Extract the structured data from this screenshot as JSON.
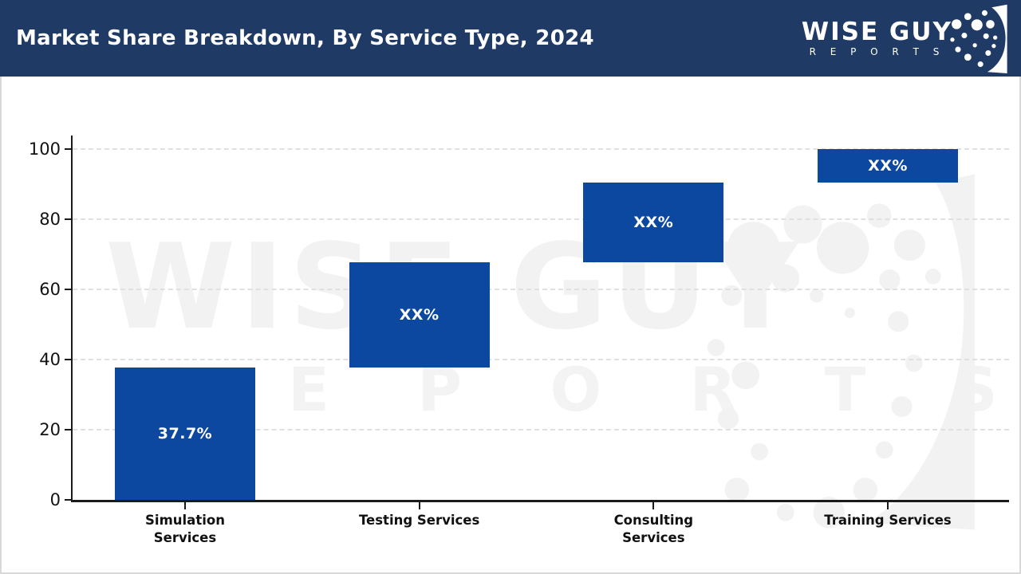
{
  "header": {
    "title": "Market Share Breakdown, By Service Type, 2024",
    "bg_color": "#203a66",
    "logo": {
      "line1": "WISE GUY",
      "line2": "R E P O R T S"
    }
  },
  "watermark": {
    "line1": "WISE GUY",
    "line2": "R E P O R T S"
  },
  "chart_data": {
    "type": "bar",
    "subtype": "waterfall",
    "title": "Market Share Breakdown, By Service Type, 2024",
    "categories": [
      "Simulation Services",
      "Testing Services",
      "Consulting Services",
      "Training Services"
    ],
    "bars": [
      {
        "label": "Simulation Services",
        "lines": [
          "Simulation",
          "Services"
        ],
        "start": 0,
        "end": 37.7,
        "value_label": "37.7%"
      },
      {
        "label": "Testing Services",
        "lines": [
          "Testing Services"
        ],
        "start": 37.7,
        "end": 67.7,
        "value_label": "XX%"
      },
      {
        "label": "Consulting Services",
        "lines": [
          "Consulting",
          "Services"
        ],
        "start": 67.7,
        "end": 90.4,
        "value_label": "XX%"
      },
      {
        "label": "Training Services",
        "lines": [
          "Training Services"
        ],
        "start": 90.4,
        "end": 100,
        "value_label": "XX%"
      }
    ],
    "yticks": [
      0,
      20,
      40,
      60,
      80,
      100
    ],
    "ylim": [
      0,
      100
    ],
    "grid": "horizontal dashed",
    "legend": "none",
    "bar_color": "#0c48a0",
    "bar_label_color": "#ffffff"
  }
}
